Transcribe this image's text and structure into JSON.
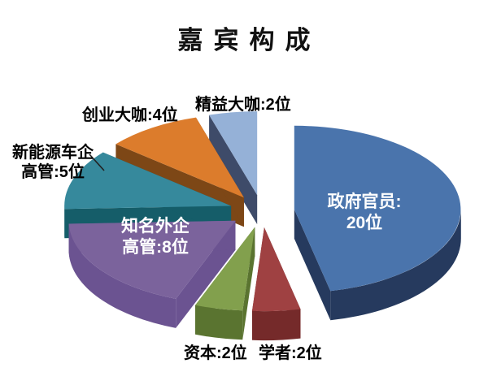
{
  "title": "嘉宾构成",
  "chart_data": {
    "type": "pie",
    "style": "3d-exploded",
    "title": "嘉宾构成",
    "direction": "clockwise",
    "start_angle_deg": 0,
    "total": 43,
    "unit": "位",
    "legend": "none",
    "background_color": "#ffffff",
    "slices": [
      {
        "name": "政府官员",
        "value": 20,
        "callout": [
          "政府官员:",
          "20位"
        ],
        "label_placement": "inside",
        "label_color": "#ffffff",
        "color": "#4a74ac",
        "side_color": "#263a5e"
      },
      {
        "name": "学者",
        "value": 2,
        "callout": [
          "学者:2位"
        ],
        "label_placement": "below",
        "label_color": "#000000",
        "color": "#9f4142",
        "side_color": "#752a2a"
      },
      {
        "name": "资本",
        "value": 2,
        "callout": [
          "资本:2位"
        ],
        "label_placement": "below",
        "label_color": "#000000",
        "color": "#82a04d",
        "side_color": "#5a7430"
      },
      {
        "name": "知名外企高管",
        "value": 8,
        "callout": [
          "知名外企",
          "高管:8位"
        ],
        "label_placement": "inside",
        "label_color": "#ffffff",
        "color": "#7b639c",
        "side_color": "#6b5391"
      },
      {
        "name": "新能源车企高管",
        "value": 5,
        "callout": [
          "新能源车企",
          "高管:5位"
        ],
        "label_placement": "outside-left",
        "label_color": "#000000",
        "color": "#36899c",
        "side_color": "#155d69"
      },
      {
        "name": "创业大咖",
        "value": 4,
        "callout": [
          "创业大咖:4位"
        ],
        "label_placement": "outside-top",
        "label_color": "#000000",
        "color": "#dc7c2c",
        "side_color": "#7d4716"
      },
      {
        "name": "精益大咖",
        "value": 2,
        "callout": [
          "精益大咖:2位"
        ],
        "label_placement": "outside-top",
        "label_color": "#000000",
        "color": "#95b1d7",
        "side_color": "#3e4b69"
      }
    ]
  }
}
